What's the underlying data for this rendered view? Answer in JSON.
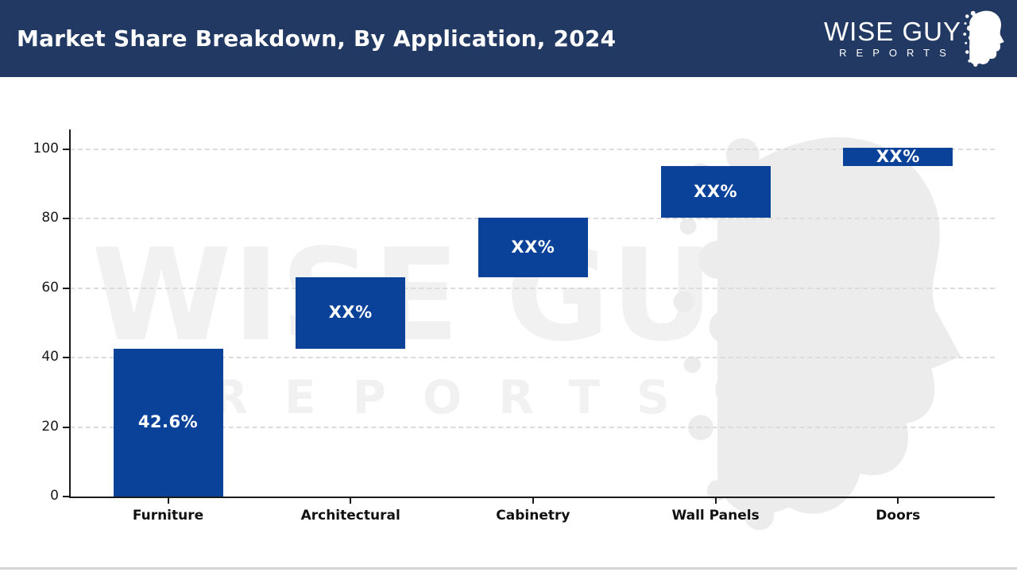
{
  "header": {
    "title": "Market Share Breakdown, By Application, 2024",
    "logo": {
      "line1": "WISE GUY",
      "line2": "REPORTS"
    }
  },
  "watermark": {
    "line1": "WISE GUY",
    "line2": "REPORTS"
  },
  "colors": {
    "header_bg": "#223a63",
    "bar_blue": "#0a429a",
    "grid": "#dcdcdc",
    "axis": "#1a1a1a",
    "watermark": "#f1f1f1",
    "bottom_band": "#d4d4d4"
  },
  "chart_data": {
    "type": "bar",
    "subtype": "waterfall",
    "title": "Market Share Breakdown, By Application, 2024",
    "xlabel": "",
    "ylabel": "",
    "categories": [
      "Furniture",
      "Architectural",
      "Cabinetry",
      "Wall Panels",
      "Doors"
    ],
    "segments": [
      {
        "category": "Furniture",
        "start": 0,
        "end": 42.6,
        "increment": 42.6,
        "label": "42.6%"
      },
      {
        "category": "Architectural",
        "start": 42.6,
        "end": 63.1,
        "increment": 20.5,
        "label": "XX%"
      },
      {
        "category": "Cabinetry",
        "start": 63.1,
        "end": 80.2,
        "increment": 17.1,
        "label": "XX%"
      },
      {
        "category": "Wall Panels",
        "start": 80.2,
        "end": 95.2,
        "increment": 15.0,
        "label": "XX%"
      },
      {
        "category": "Doors",
        "start": 95.2,
        "end": 100.4,
        "increment": 5.2,
        "label": "XX%"
      }
    ],
    "yticks": [
      0,
      20,
      40,
      60,
      80,
      100
    ],
    "ylim": [
      0,
      105.6
    ],
    "grid": "horizontal dashed",
    "legend": "none",
    "bar_color": "#0a429a",
    "bar_label_color": "#ffffff"
  }
}
